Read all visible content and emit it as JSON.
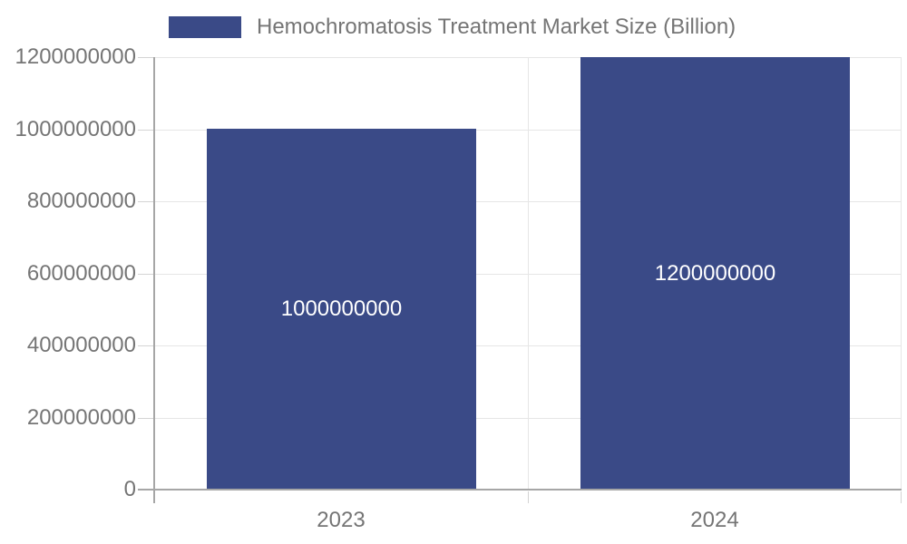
{
  "chart_data": {
    "type": "bar",
    "title": "Hemochromatosis Treatment Market Size (Billion)",
    "legend_position": "top",
    "categories": [
      "2023",
      "2024"
    ],
    "series": [
      {
        "name": "Hemochromatosis Treatment Market Size (Billion)",
        "values": [
          1000000000,
          1200000000
        ]
      }
    ],
    "bar_value_labels": [
      "1000000000",
      "1200000000"
    ],
    "y_ticks": [
      {
        "value": 0,
        "label": "0"
      },
      {
        "value": 200000000,
        "label": "200000000"
      },
      {
        "value": 400000000,
        "label": "400000000"
      },
      {
        "value": 600000000,
        "label": "600000000"
      },
      {
        "value": 800000000,
        "label": "800000000"
      },
      {
        "value": 1000000000,
        "label": "1000000000"
      },
      {
        "value": 1200000000,
        "label": "1200000000"
      }
    ],
    "ylim": [
      0,
      1200000000
    ],
    "xlabel": "",
    "ylabel": "",
    "grid": true,
    "colors": {
      "bar": "#3a4a87",
      "legend_text": "#757575",
      "axis_text": "#757575",
      "bar_label_text": "#ffffff",
      "gridline": "#e6e6e6",
      "tick_line": "#d4d4d4",
      "axis_line": "#a6a6a6",
      "background": "#ffffff"
    }
  }
}
